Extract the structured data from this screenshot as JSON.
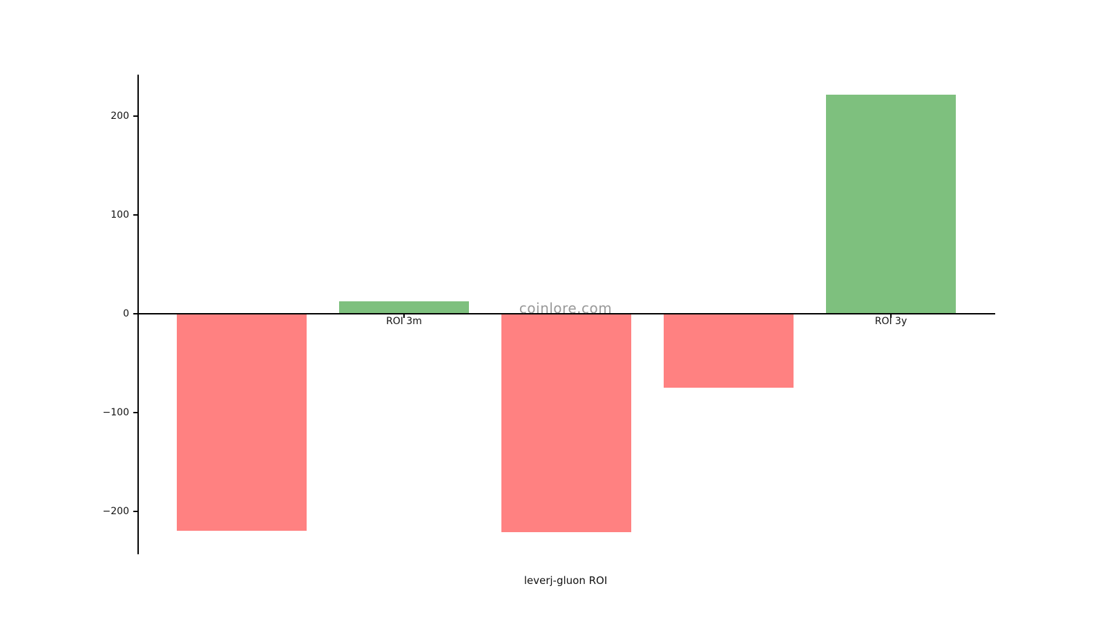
{
  "watermark": {
    "text": "coinlore.com",
    "color": "#808080"
  },
  "chart_data": {
    "type": "bar",
    "title": "",
    "xlabel": "leverj-gluon ROI",
    "ylabel": "",
    "categories": [
      "",
      "ROI 3m",
      "",
      "",
      "ROI 3y"
    ],
    "values": [
      -219,
      12,
      -220,
      -74,
      221
    ],
    "y_ticks": [
      200,
      100,
      0,
      -100,
      -200
    ],
    "y_tick_labels": [
      "200",
      "100",
      "0",
      "−100",
      "−200"
    ],
    "ylim": [
      -242,
      242
    ],
    "grid": false,
    "legend": false,
    "positive_color": "#7ec07e",
    "negative_color": "#ff8181",
    "axis_color": "#000000",
    "tick_label_color": "#111111",
    "background_color": "#ffffff"
  }
}
